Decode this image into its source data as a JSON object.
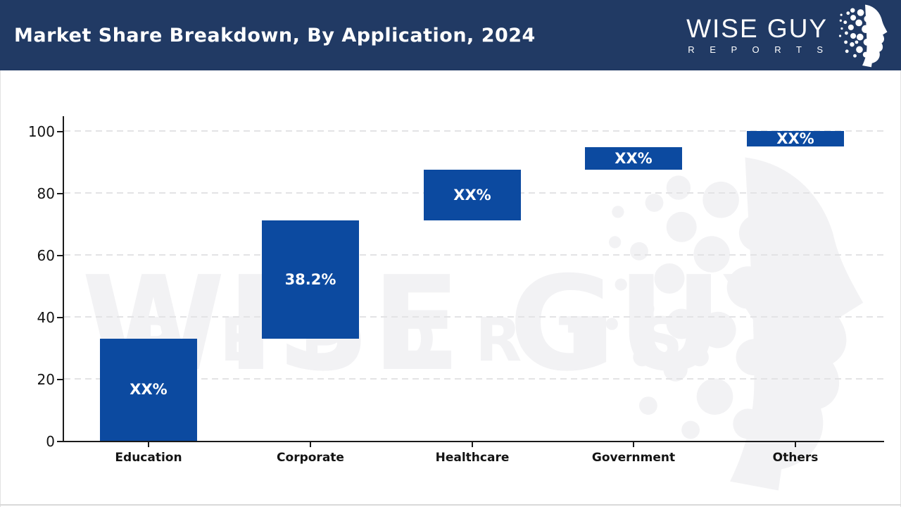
{
  "header": {
    "title": "Market Share Breakdown, By Application, 2024",
    "bg_color": "#213a64",
    "logo": {
      "wordmark": "WISE GUY",
      "subtext": "R E P O R T S"
    }
  },
  "watermark": {
    "line1": "WISE GUY",
    "line2": "REPORTS"
  },
  "chart_data": {
    "type": "bar",
    "subtype": "waterfall",
    "title": "Market Share Breakdown, By Application, 2024",
    "categories": [
      "Education",
      "Corporate",
      "Healthcare",
      "Government",
      "Others"
    ],
    "segments": [
      {
        "category": "Education",
        "start": 0,
        "end": 33,
        "size_label": "XX%"
      },
      {
        "category": "Corporate",
        "start": 33,
        "end": 71.2,
        "size_label": "38.2%"
      },
      {
        "category": "Healthcare",
        "start": 71.2,
        "end": 87.5,
        "size_label": "XX%"
      },
      {
        "category": "Government",
        "start": 87.5,
        "end": 94.8,
        "size_label": "XX%"
      },
      {
        "category": "Others",
        "start": 95,
        "end": 100,
        "size_label": "XX%"
      }
    ],
    "yticks": [
      0,
      20,
      40,
      60,
      80,
      100
    ],
    "ylim": [
      0,
      105
    ],
    "xlabel": "",
    "ylabel": "",
    "grid": "horizontal-dashed",
    "legend": "none",
    "bar_color": "#0c4aa0",
    "bar_label_color": "#ffffff",
    "axis_color": "#1a1a1a",
    "gridline_color": "#e3e3e5",
    "watermark_color": "#f2f2f4"
  }
}
